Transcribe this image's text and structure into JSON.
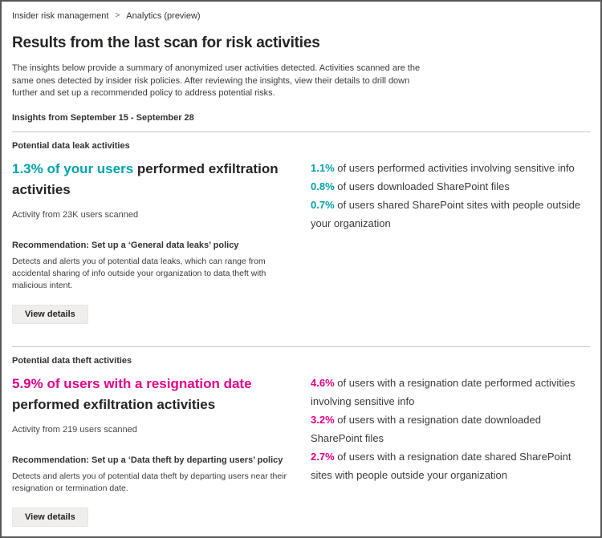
{
  "colors": {
    "teal_accent": "#00A3AD",
    "magenta_accent": "#E3008C",
    "text_dark": "#252423",
    "text_body": "#3b3a39",
    "divider": "#c8c6c4",
    "button_bg": "#efeeed",
    "outer_border": "#565656"
  },
  "breadcrumb": {
    "items": [
      {
        "label": "Insider risk management"
      },
      {
        "label": "Analytics (preview)"
      }
    ],
    "separator": ">"
  },
  "header": {
    "title": "Results from the last scan for risk activities",
    "description": "The insights below provide a summary of anonymized user activities detected. Activities scanned are the same ones detected by insider risk policies. After reviewing the insights, view their details to drill down further and set up a recommended policy to address potential risks.",
    "insights_range": "Insights from September 15 - September 28"
  },
  "sections": [
    {
      "heading": "Potential data leak activities",
      "accent_color": "#00A3AD",
      "headline_highlight": "1.3% of your users",
      "headline_rest": " performed exfiltration activities",
      "activity_note": "Activity from 23K users scanned",
      "recommendation_title": "Recommendation: Set up a ‘General data leaks’ policy",
      "recommendation_body": "Detects and alerts you of potential data leaks, which can range from accidental sharing of info outside your organization to data theft with malicious intent.",
      "button_label": "View details",
      "stats": [
        {
          "value": "1.1%",
          "text": " of users performed activities involving sensitive info"
        },
        {
          "value": "0.8%",
          "text": " of users downloaded SharePoint files"
        },
        {
          "value": "0.7%",
          "text": " of users shared SharePoint sites with people outside your organization"
        }
      ]
    },
    {
      "heading": "Potential data theft activities",
      "accent_color": "#E3008C",
      "headline_highlight": "5.9% of users with a resignation date",
      "headline_rest": " performed exfiltration activities",
      "activity_note": "Activity from 219 users scanned",
      "recommendation_title": "Recommendation: Set up a ‘Data theft by departing users’ policy",
      "recommendation_body": "Detects and alerts you of potential data theft by departing users near their resignation or termination date.",
      "button_label": "View details",
      "stats": [
        {
          "value": "4.6%",
          "text": " of users with a resignation date performed activities involving sensitive info"
        },
        {
          "value": "3.2%",
          "text": " of users with a resignation date downloaded SharePoint files"
        },
        {
          "value": "2.7%",
          "text": " of users with a resignation date shared SharePoint sites with people outside your organization"
        }
      ]
    }
  ]
}
